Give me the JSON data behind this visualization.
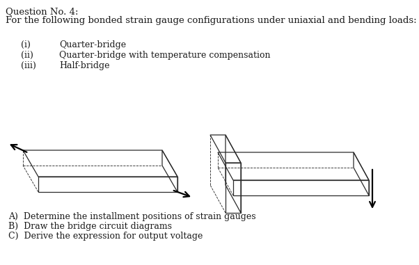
{
  "title_line1": "Question No. 4:",
  "title_line2": "For the following bonded strain gauge configurations under uniaxial and bending loads:",
  "items": [
    [
      "(i)",
      "Quarter-bridge"
    ],
    [
      "(ii)",
      "Quarter-bridge with temperature compensation"
    ],
    [
      "(iii)",
      "Half-bridge"
    ]
  ],
  "questions": [
    "A)  Determine the installment positions of strain gauges",
    "B)  Draw the bridge circuit diagrams",
    "C)  Derive the expression for output voltage"
  ],
  "background_color": "#ffffff",
  "text_color": "#1a1a1a",
  "line_color": "#2a2a2a",
  "fontsize_title": 9.5,
  "fontsize_text": 9.0,
  "fontsize_items": 9.0
}
